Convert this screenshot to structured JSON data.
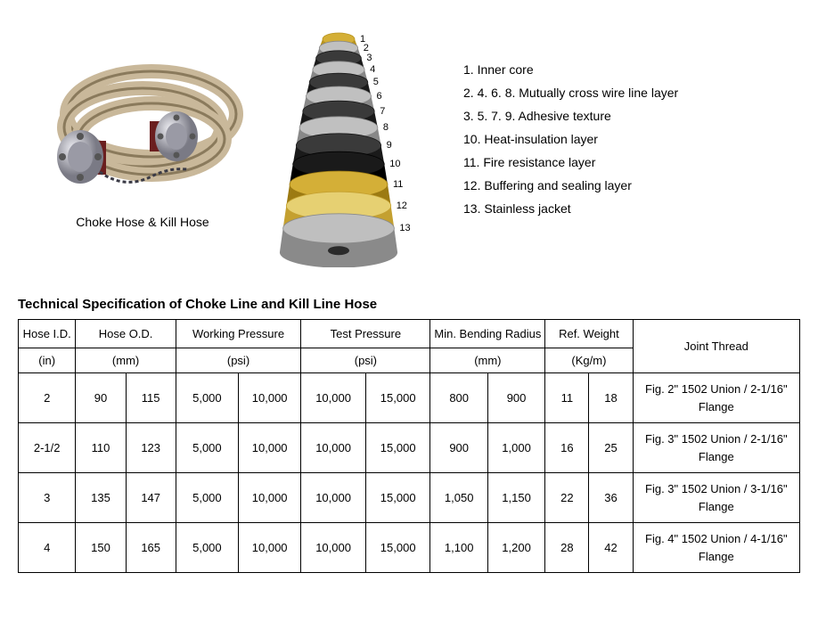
{
  "product_caption": "Choke Hose & Kill Hose",
  "legend": [
    "1. Inner core",
    "2. 4. 6. 8. Mutually cross wire line layer",
    "3. 5. 7. 9. Adhesive texture",
    "10. Heat-insulation layer",
    "11. Fire resistance layer",
    "12. Buffering and sealing layer",
    "13. Stainless jacket"
  ],
  "layer_numbers": [
    "1",
    "2",
    "3",
    "4",
    "5",
    "6",
    "7",
    "8",
    "9",
    "10",
    "11",
    "12",
    "13"
  ],
  "table_title": "Technical Specification of Choke Line and Kill Line Hose",
  "headers": {
    "id": "Hose I.D.",
    "od": "Hose O.D.",
    "wp": "Working Pressure",
    "tp": "Test Pressure",
    "br": "Min. Bending Radius",
    "wt": "Ref. Weight",
    "jt": "Joint Thread",
    "unit_in": "(in)",
    "unit_mm": "(mm)",
    "unit_psi": "(psi)",
    "unit_kgm": "(Kg/m)"
  },
  "rows": [
    {
      "id": "2",
      "od": [
        "90",
        "115"
      ],
      "wp": [
        "5,000",
        "10,000"
      ],
      "tp": [
        "10,000",
        "15,000"
      ],
      "br": [
        "800",
        "900"
      ],
      "wt": [
        "11",
        "18"
      ],
      "jt": "Fig. 2\" 1502 Union / 2-1/16\" Flange"
    },
    {
      "id": "2-1/2",
      "od": [
        "110",
        "123"
      ],
      "wp": [
        "5,000",
        "10,000"
      ],
      "tp": [
        "10,000",
        "15,000"
      ],
      "br": [
        "900",
        "1,000"
      ],
      "wt": [
        "16",
        "25"
      ],
      "jt": "Fig. 3\" 1502 Union / 2-1/16\" Flange"
    },
    {
      "id": "3",
      "od": [
        "135",
        "147"
      ],
      "wp": [
        "5,000",
        "10,000"
      ],
      "tp": [
        "10,000",
        "15,000"
      ],
      "br": [
        "1,050",
        "1,150"
      ],
      "wt": [
        "22",
        "36"
      ],
      "jt": "Fig. 3\" 1502 Union / 3-1/16\" Flange"
    },
    {
      "id": "4",
      "od": [
        "150",
        "165"
      ],
      "wp": [
        "5,000",
        "10,000"
      ],
      "tp": [
        "10,000",
        "15,000"
      ],
      "br": [
        "1,100",
        "1,200"
      ],
      "wt": [
        "28",
        "42"
      ],
      "jt": "Fig. 4\" 1502 Union / 4-1/16\" Flange"
    }
  ],
  "cutaway_layers": [
    {
      "color": "#d4af37",
      "alt": "#b8941f"
    },
    {
      "color": "#c0c0c0",
      "alt": "#888888"
    },
    {
      "color": "#3a3a3a",
      "alt": "#1a1a1a"
    },
    {
      "color": "#c0c0c0",
      "alt": "#888888"
    },
    {
      "color": "#3a3a3a",
      "alt": "#1a1a1a"
    },
    {
      "color": "#c0c0c0",
      "alt": "#888888"
    },
    {
      "color": "#3a3a3a",
      "alt": "#1a1a1a"
    },
    {
      "color": "#c0c0c0",
      "alt": "#888888"
    },
    {
      "color": "#3a3a3a",
      "alt": "#1a1a1a"
    },
    {
      "color": "#1a1a1a",
      "alt": "#000000"
    },
    {
      "color": "#d4af37",
      "alt": "#9c7a12"
    },
    {
      "color": "#e6d072",
      "alt": "#c4a030"
    },
    {
      "color": "#bfbfbf",
      "alt": "#8a8a8a"
    }
  ],
  "hose_colors": {
    "coil_outer": "#c9b89a",
    "coil_shade": "#8a7a5c",
    "flange": "#d0d0d5",
    "flange_shade": "#7a7a85",
    "chain": "#4a4a55"
  }
}
